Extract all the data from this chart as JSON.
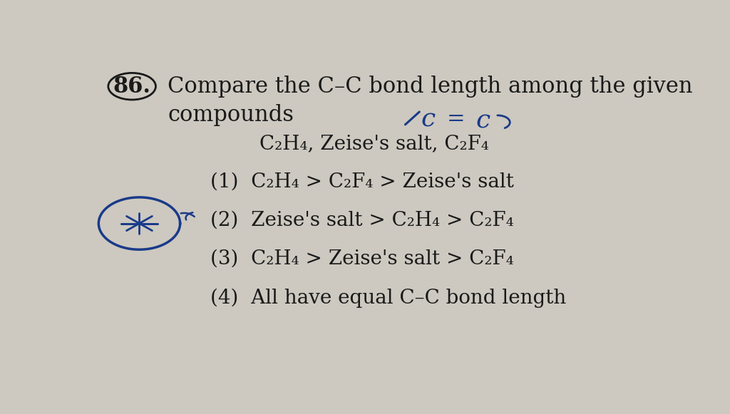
{
  "background_color": "#cdc9c0",
  "question_number": "86.",
  "question_text": "Compare the C–C bond length among the given",
  "question_text2": "compounds",
  "compounds_line": "C₂H₄, Zeise's salt, C₂F₄",
  "options": [
    "(1)  C₂H₄ > C₂F₄ > Zeise's salt",
    "(2)  Zeise's salt > C₂H₄ > C₂F₄",
    "(3)  C₂H₄ > Zeise's salt > C₂F₄",
    "(4)  All have equal C–C bond length"
  ],
  "correct_option_index": 1,
  "text_color": "#1a1a1a",
  "circle_color_86": "#1a1a1a",
  "circle_color_answer": "#1a3a8a",
  "font_size_question": 22,
  "font_size_options": 20,
  "font_size_compounds": 20
}
